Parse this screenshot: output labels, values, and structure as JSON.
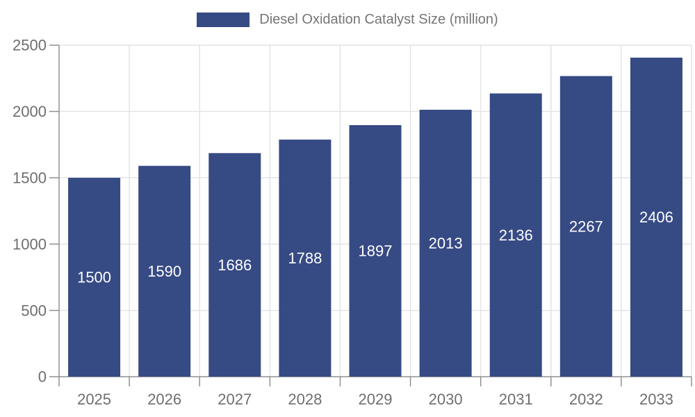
{
  "chart_data": {
    "type": "bar",
    "categories": [
      "2025",
      "2026",
      "2027",
      "2028",
      "2029",
      "2030",
      "2031",
      "2032",
      "2033"
    ],
    "series": [
      {
        "name": "Diesel Oxidation Catalyst Size (million)",
        "values": [
          1500,
          1590,
          1686,
          1788,
          1897,
          2013,
          2136,
          2267,
          2406
        ],
        "color": "#364a84"
      }
    ],
    "xlabel": "",
    "ylabel": "",
    "ylim": [
      0,
      2500
    ],
    "yticks": [
      0,
      500,
      1000,
      1500,
      2000,
      2500
    ],
    "grid": "horizontal-and-vertical",
    "legend_position": "top-center",
    "value_labels_position": "inside-center",
    "value_labels_color": "#ffffff"
  },
  "theme": {
    "background_color": "#ffffff",
    "bar_color": "#364a84",
    "grid_color": "#e4e4e4",
    "axis_color": "#909090",
    "tick_label_color": "#6e6e6e",
    "legend_text_color": "#757575"
  }
}
